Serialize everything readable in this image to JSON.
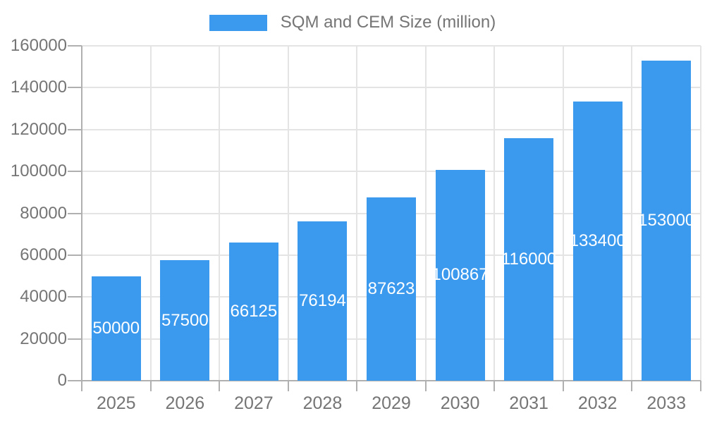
{
  "chart_data": {
    "type": "bar",
    "title": "SQM and CEM Size (million)",
    "categories": [
      "2025",
      "2026",
      "2027",
      "2028",
      "2029",
      "2030",
      "2031",
      "2032",
      "2033"
    ],
    "series": [
      {
        "name": "SQM and CEM Size (million)",
        "values": [
          50000,
          57500,
          66125,
          76194,
          87623,
          100867,
          116000,
          133400,
          153000
        ]
      }
    ],
    "bar_value_labels": [
      "50000",
      "57500",
      "66125",
      "76194",
      "87623",
      "100867",
      "116000",
      "133400",
      "153000"
    ],
    "xlabel": "",
    "ylabel": "",
    "ylim": [
      0,
      160000
    ],
    "y_tick_step": 20000,
    "y_tick_labels": [
      "0",
      "20000",
      "40000",
      "60000",
      "80000",
      "100000",
      "120000",
      "140000",
      "160000"
    ],
    "grid": true,
    "legend_position": "top-center",
    "colors": {
      "bar_fill": "#3B99EE",
      "bar_label_text": "#ffffff",
      "axis_text": "#757575",
      "grid_line": "#e4e4e4",
      "axis_line": "#b0b0b0",
      "background": "#ffffff"
    }
  }
}
